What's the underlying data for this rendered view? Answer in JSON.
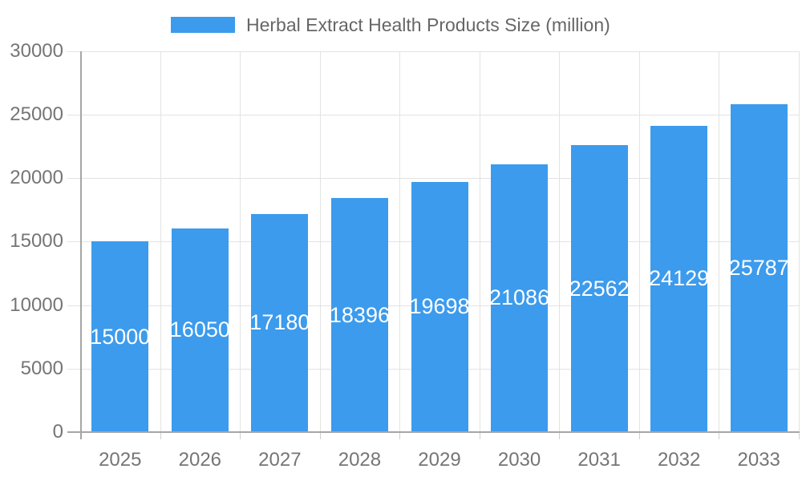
{
  "legend": {
    "label": "Herbal Extract Health Products Size (million)"
  },
  "chart_data": {
    "type": "bar",
    "title": "",
    "legend_entries": [
      "Herbal Extract Health Products Size (million)"
    ],
    "legend_position": "top-center",
    "categories": [
      "2025",
      "2026",
      "2027",
      "2028",
      "2029",
      "2030",
      "2031",
      "2032",
      "2033"
    ],
    "series": [
      {
        "name": "Herbal Extract Health Products Size (million)",
        "values": [
          15000,
          16050,
          17180,
          18396,
          19698,
          21086,
          22562,
          24129,
          25787
        ]
      }
    ],
    "value_labels_inside_bars": true,
    "xlabel": "",
    "ylabel": "",
    "ylim": [
      0,
      30000
    ],
    "ytick_step": 5000,
    "yticks": [
      0,
      5000,
      10000,
      15000,
      20000,
      25000,
      30000
    ],
    "grid": true,
    "colors": {
      "bar": "#3C9BEC",
      "value_label": "#FFFFFF",
      "axis_label": "#757575",
      "legend_text": "#666666",
      "gridline": "#E3E3E3",
      "axis_line": "#A6A6A6",
      "tick": "#D0D0D0",
      "background": "#FFFFFF"
    }
  }
}
